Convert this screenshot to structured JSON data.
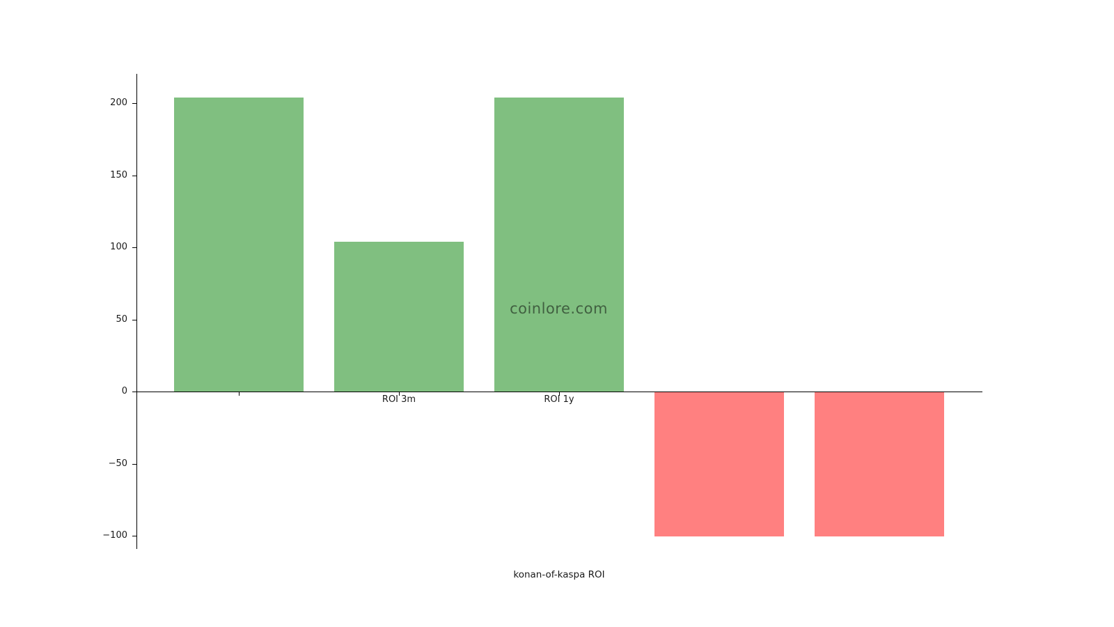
{
  "watermark": {
    "text": "coinlore.com"
  },
  "chart_data": {
    "type": "bar",
    "title": "",
    "xlabel": "konan-of-kaspa ROI",
    "ylabel": "",
    "categories": [
      "",
      "ROI 3m",
      "ROI 1y",
      "",
      ""
    ],
    "values": [
      204,
      104,
      204,
      -100,
      -100
    ],
    "series": [
      {
        "name": "konan-of-kaspa ROI %",
        "values": [
          204,
          104,
          204,
          -100,
          -100
        ]
      }
    ],
    "yticks": [
      {
        "value": 200,
        "label": "200"
      },
      {
        "value": 150,
        "label": "150"
      },
      {
        "value": 100,
        "label": "100"
      },
      {
        "value": 50,
        "label": "50"
      },
      {
        "value": 0,
        "label": "0"
      },
      {
        "value": -50,
        "label": "−50"
      },
      {
        "value": -100,
        "label": "−100"
      }
    ],
    "ylim": [
      -115,
      220
    ],
    "grid": false,
    "legend": "none",
    "colors": {
      "positive": "#80bf80",
      "negative": "#ff8080",
      "axis": "#000000",
      "text": "#1a1a1a"
    }
  }
}
